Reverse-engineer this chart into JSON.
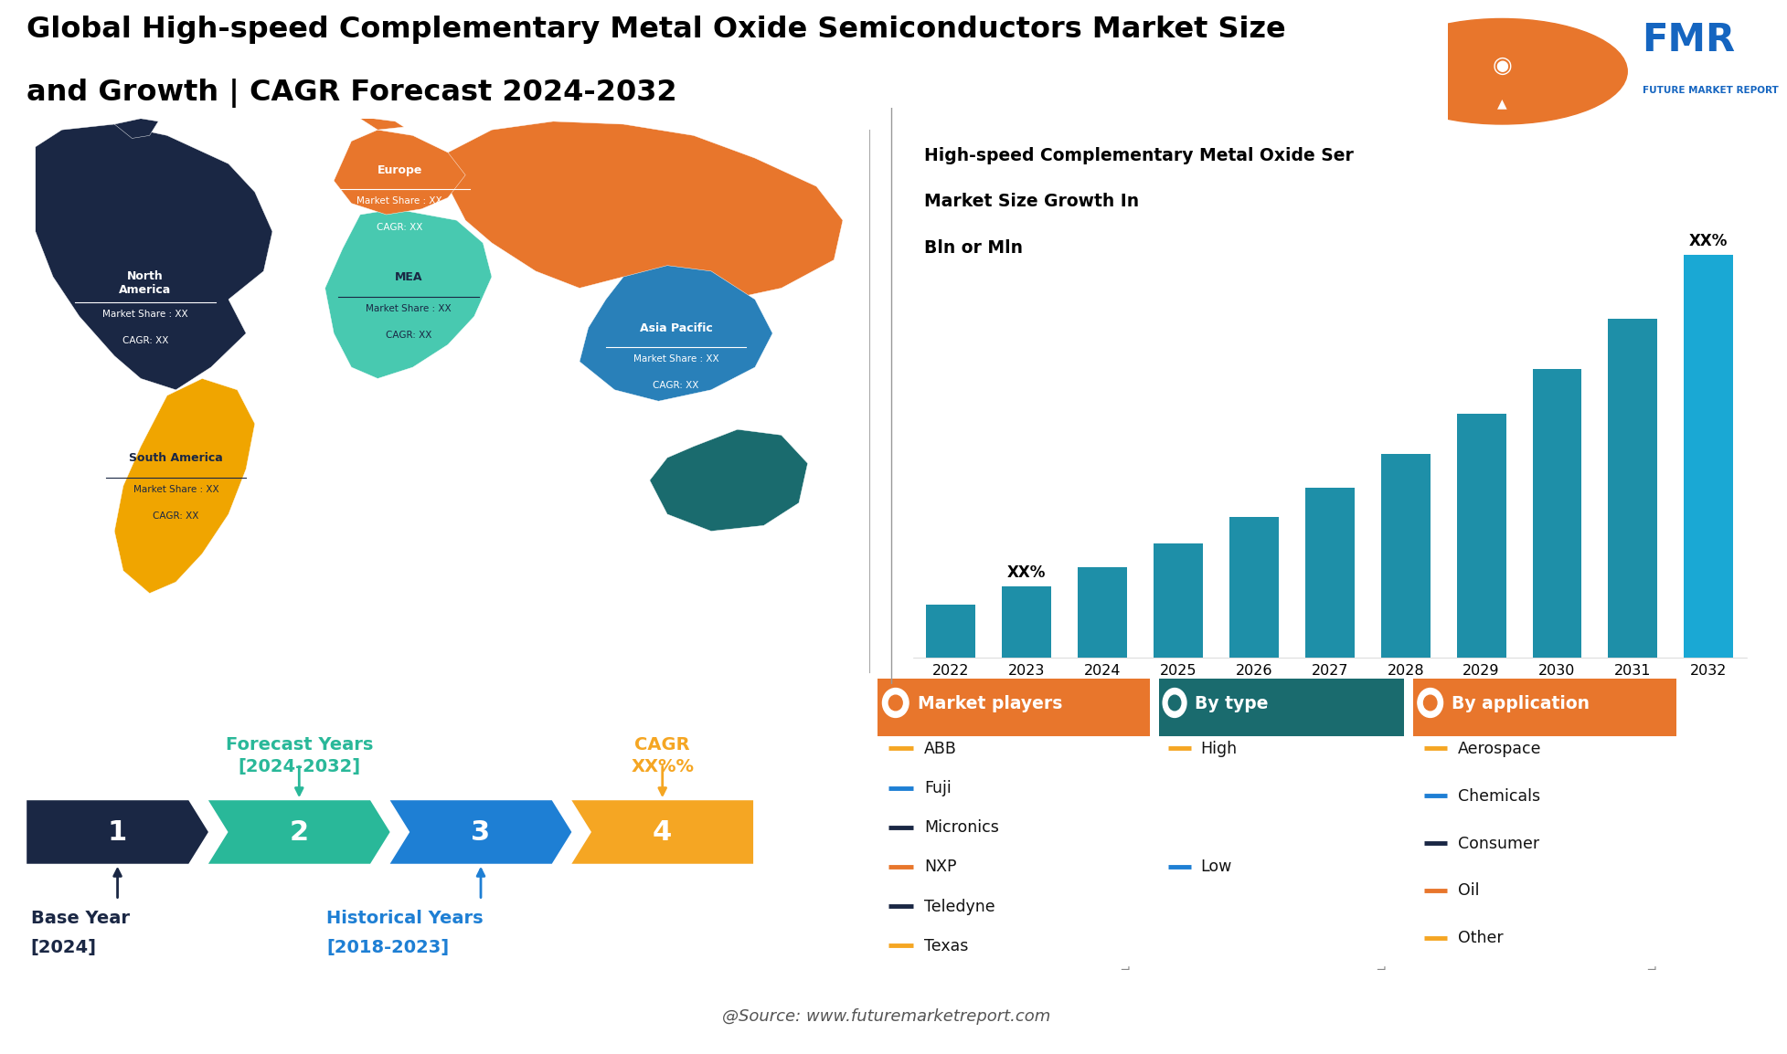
{
  "title_line1": "Global High-speed Complementary Metal Oxide Semiconductors Market Size",
  "title_line2": "and Growth | CAGR Forecast 2024-2032",
  "title_fontsize": 23,
  "title_color": "#000000",
  "bg_color": "#ffffff",
  "bar_chart_title_line1": "High-speed Complementary Metal Oxide Ser",
  "bar_chart_title_line2": "Market Size Growth In",
  "bar_chart_title_line3": "Bln or Mln",
  "bar_years": [
    2022,
    2023,
    2024,
    2025,
    2026,
    2027,
    2028,
    2029,
    2030,
    2031,
    2032
  ],
  "bar_values": [
    1.0,
    1.35,
    1.7,
    2.15,
    2.65,
    3.2,
    3.85,
    4.6,
    5.45,
    6.4,
    7.6
  ],
  "bar_color_main": "#1e8fa8",
  "bar_annotation_2023": "XX%",
  "bar_annotation_2032": "XX%",
  "seg_colors": [
    "#1a2744",
    "#29b899",
    "#1e7fd4",
    "#f5a623"
  ],
  "seg_nums": [
    "1",
    "2",
    "3",
    "4"
  ],
  "forecast_label_color": "#29b899",
  "cagr_label_color": "#f5a623",
  "base_year_label_color": "#1a2744",
  "hist_year_label_color": "#1e7fd4",
  "market_players_title": "Market players",
  "market_players_title_bg": "#e8762c",
  "market_players": [
    {
      "name": "ABB",
      "color": "#f5a623"
    },
    {
      "name": "Fuji",
      "color": "#1e7fd4"
    },
    {
      "name": "Micronics",
      "color": "#1a2744"
    },
    {
      "name": "NXP",
      "color": "#e8762c"
    },
    {
      "name": "Teledyne",
      "color": "#1a2744"
    },
    {
      "name": "Texas",
      "color": "#f5a623"
    }
  ],
  "by_type_title": "By type",
  "by_type_title_bg": "#1a6b6e",
  "by_type": [
    {
      "name": "High",
      "color": "#f5a623"
    },
    {
      "name": "Low",
      "color": "#1e7fd4"
    }
  ],
  "by_application_title": "By application",
  "by_application_title_bg": "#e8762c",
  "by_application": [
    {
      "name": "Aerospace",
      "color": "#f5a623"
    },
    {
      "name": "Chemicals",
      "color": "#1e7fd4"
    },
    {
      "name": "Consumer",
      "color": "#1a2744"
    },
    {
      "name": "Oil",
      "color": "#e8762c"
    },
    {
      "name": "Other",
      "color": "#f5a623"
    }
  ],
  "source_text": "@Source: www.futuremarketreport.com",
  "fmr_text": "FMR",
  "fmr_subtext": "FUTURE MARKET REPORT",
  "fmr_color": "#1565c0",
  "fmr_orange": "#e8762c"
}
